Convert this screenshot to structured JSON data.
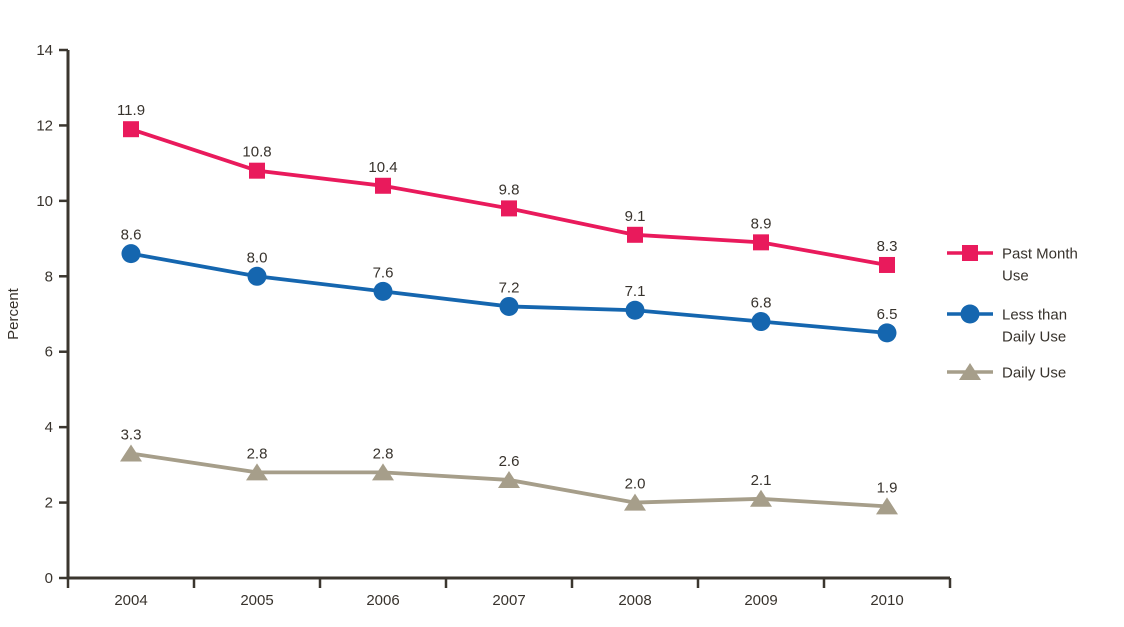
{
  "chart_data": {
    "type": "line",
    "title": "",
    "xlabel": "",
    "ylabel": "Percent",
    "ylim": [
      0,
      14
    ],
    "yticks": [
      "0",
      "2",
      "4",
      "6",
      "8",
      "10",
      "12",
      "14"
    ],
    "categories": [
      "2004",
      "2005",
      "2006",
      "2007",
      "2008",
      "2009",
      "2010"
    ],
    "grid": false,
    "legend_position": "right",
    "series": [
      {
        "name": "Past Month Use",
        "legend_lines": [
          "Past Month",
          "Use"
        ],
        "marker": "square",
        "color": "#e91a5c",
        "values": [
          11.9,
          10.8,
          10.4,
          9.8,
          9.1,
          8.9,
          8.3
        ],
        "labels": [
          "11.9",
          "10.8",
          "10.4",
          "9.8",
          "9.1",
          "8.9",
          "8.3"
        ]
      },
      {
        "name": "Less than Daily Use",
        "legend_lines": [
          "Less than",
          "Daily Use"
        ],
        "marker": "circle",
        "color": "#1566af",
        "values": [
          8.6,
          8.0,
          7.6,
          7.2,
          7.1,
          6.8,
          6.5
        ],
        "labels": [
          "8.6",
          "8.0",
          "7.6",
          "7.2",
          "7.1",
          "6.8",
          "6.5"
        ]
      },
      {
        "name": "Daily Use",
        "legend_lines": [
          "Daily Use"
        ],
        "marker": "triangle",
        "color": "#a69e8a",
        "values": [
          3.3,
          2.8,
          2.8,
          2.6,
          2.0,
          2.1,
          1.9
        ],
        "labels": [
          "3.3",
          "2.8",
          "2.8",
          "2.6",
          "2.0",
          "2.1",
          "1.9"
        ]
      }
    ],
    "colors": {
      "axis": "#3b362f",
      "text": "#38332d"
    }
  }
}
